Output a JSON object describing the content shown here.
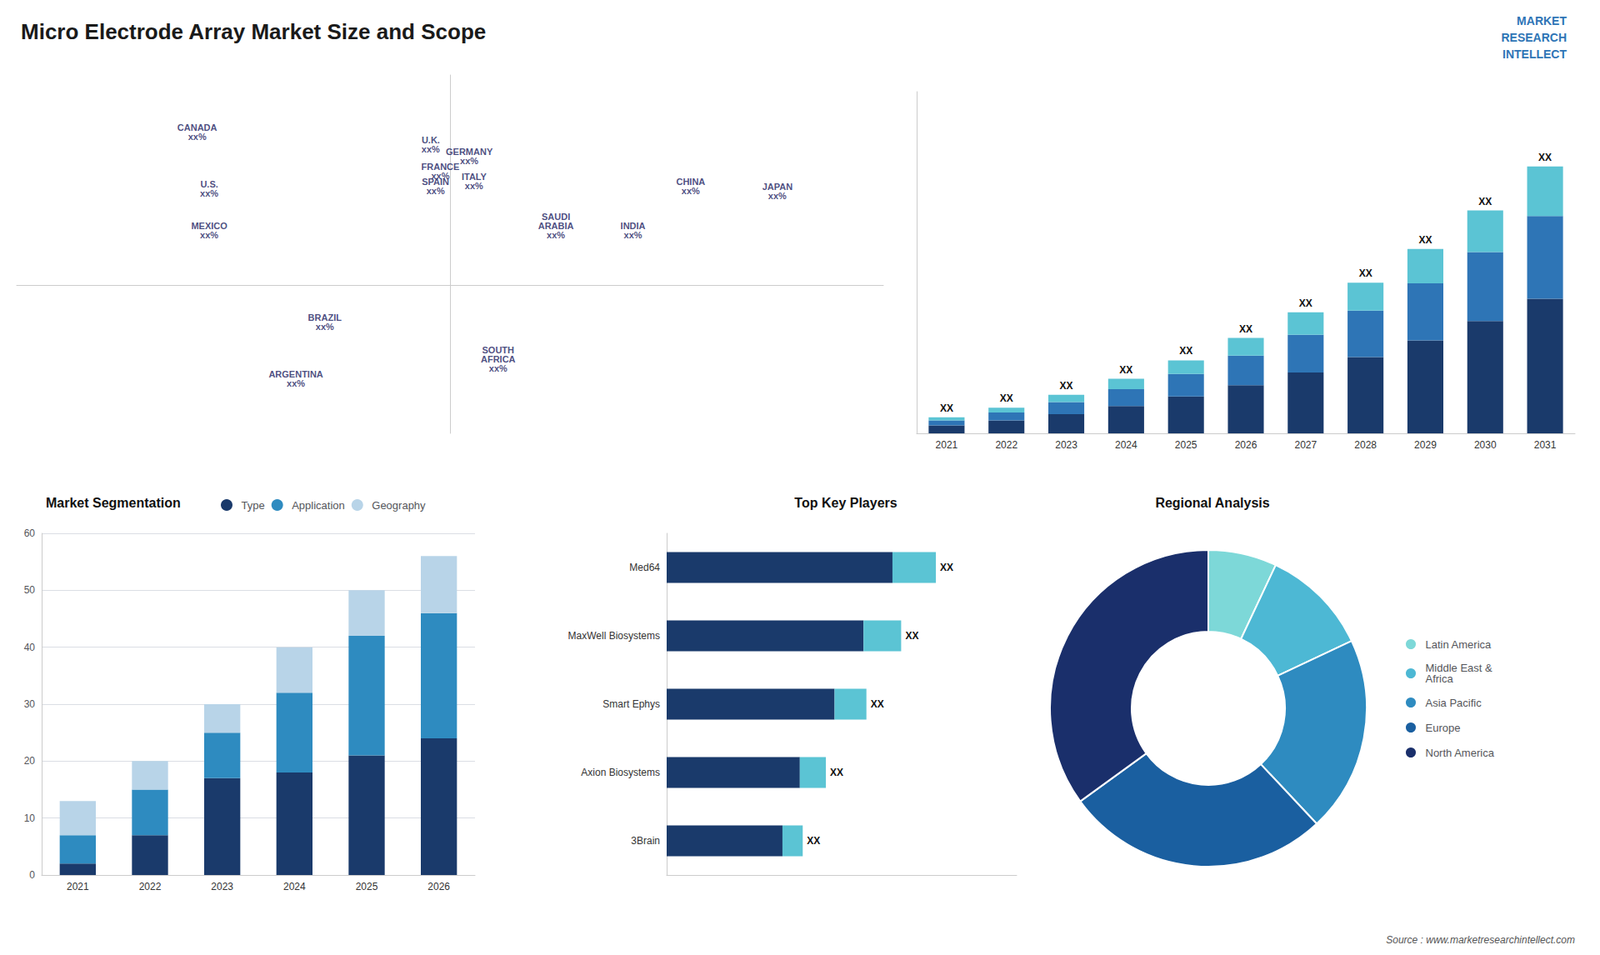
{
  "title": "Micro Electrode Array Market Size and Scope",
  "logo": [
    "MARKET",
    "RESEARCH",
    "INTELLECT"
  ],
  "source": "Source : www.marketresearchintellect.com",
  "chart_data": [
    {
      "type": "map",
      "points": [
        {
          "label": "U.S.\nxx%",
          "x": -100,
          "y": 39
        },
        {
          "label": "CANADA\nxx%",
          "x": -105,
          "y": 62
        },
        {
          "label": "MEXICO\nxx%",
          "x": -100,
          "y": 22
        },
        {
          "label": "BRAZIL\nxx%",
          "x": -52,
          "y": -15
        },
        {
          "label": "ARGENTINA\nxx%",
          "x": -64,
          "y": -38
        },
        {
          "label": "U.K.\nxx%",
          "x": -8,
          "y": 57
        },
        {
          "label": "FRANCE\nxx%",
          "x": -4,
          "y": 46
        },
        {
          "label": "SPAIN\nxx%",
          "x": -6,
          "y": 40
        },
        {
          "label": "GERMANY\nxx%",
          "x": 8,
          "y": 52
        },
        {
          "label": "ITALY\nxx%",
          "x": 10,
          "y": 42
        },
        {
          "label": "SAUDI\nARABIA\nxx%",
          "x": 44,
          "y": 24
        },
        {
          "label": "SOUTH\nAFRICA\nxx%",
          "x": 20,
          "y": -30
        },
        {
          "label": "CHINA\nxx%",
          "x": 100,
          "y": 40
        },
        {
          "label": "JAPAN\nxx%",
          "x": 136,
          "y": 38
        },
        {
          "label": "INDIA\nxx%",
          "x": 76,
          "y": 22
        }
      ],
      "xlim": [
        -180,
        180
      ],
      "ylim": [
        -60,
        85
      ],
      "tick_labels": false,
      "grid": false
    },
    {
      "type": "bar",
      "stacked": true,
      "categories": [
        "2021",
        "2022",
        "2023",
        "2024",
        "2025",
        "2026",
        "2027",
        "2028",
        "2029",
        "2030",
        "2031"
      ],
      "series": [
        {
          "color": "#1a3a6b",
          "values": [
            1.0,
            1.6,
            2.4,
            3.4,
            4.6,
            6.0,
            7.6,
            9.5,
            11.6,
            14.0,
            16.8
          ]
        },
        {
          "color": "#2e75b6",
          "values": [
            0.6,
            1.0,
            1.5,
            2.1,
            2.8,
            3.7,
            4.7,
            5.8,
            7.1,
            8.6,
            10.3
          ]
        },
        {
          "color": "#5bc4d4",
          "values": [
            0.4,
            0.6,
            0.9,
            1.3,
            1.7,
            2.2,
            2.8,
            3.5,
            4.3,
            5.2,
            6.2
          ]
        }
      ],
      "total_labels": [
        "XX",
        "XX",
        "XX",
        "XX",
        "XX",
        "XX",
        "XX",
        "XX",
        "XX",
        "XX",
        "XX"
      ],
      "ylim": [
        0,
        42.624
      ],
      "yticks": [],
      "tick_labels": "x",
      "grid": false
    },
    {
      "type": "bar",
      "title": "Market Segmentation",
      "stacked": true,
      "categories": [
        "2021",
        "2022",
        "2023",
        "2024",
        "2025",
        "2026"
      ],
      "series": [
        {
          "name": "Type",
          "color": "#1a3a6b",
          "values": [
            2,
            7,
            17,
            18,
            21,
            24
          ]
        },
        {
          "name": "Application",
          "color": "#2e8bc0",
          "values": [
            5,
            8,
            8,
            14,
            21,
            22
          ]
        },
        {
          "name": "Geography",
          "color": "#b8d4e8",
          "values": [
            6,
            5,
            5,
            8,
            8,
            10
          ]
        }
      ],
      "ylim": [
        0,
        60
      ],
      "yticks": [
        0,
        10,
        20,
        30,
        40,
        50,
        60
      ],
      "grid": true,
      "legend": "upper right"
    },
    {
      "type": "bar",
      "title": "Top Key Players",
      "orientation": "horizontal",
      "stacked": true,
      "categories": [
        "Med64",
        "MaxWell Biosystems",
        "Smart Ephys",
        "Axion Biosystems",
        "3Brain"
      ],
      "series": [
        {
          "color": "#1a3a6b",
          "values": [
            7.8,
            6.8,
            5.8,
            4.6,
            4.0
          ]
        },
        {
          "color": "#5bc4d4",
          "values": [
            1.5,
            1.3,
            1.1,
            0.9,
            0.7
          ]
        }
      ],
      "total_labels": [
        "XX",
        "XX",
        "XX",
        "XX",
        "XX"
      ],
      "xlim": [
        0,
        12.09
      ],
      "xticks": [],
      "tick_labels": "y",
      "grid": false
    },
    {
      "type": "pie",
      "title": "Regional Analysis",
      "categories": [
        "Latin America",
        "Middle East &\nAfrica",
        "Asia Pacific",
        "Europe",
        "North America"
      ],
      "values": [
        7,
        11,
        20,
        27,
        35
      ],
      "colors": [
        "#7dd8d8",
        "#4db8d4",
        "#2e8bc0",
        "#1a5fa0",
        "#1a2f6b"
      ],
      "legend": "right"
    }
  ]
}
